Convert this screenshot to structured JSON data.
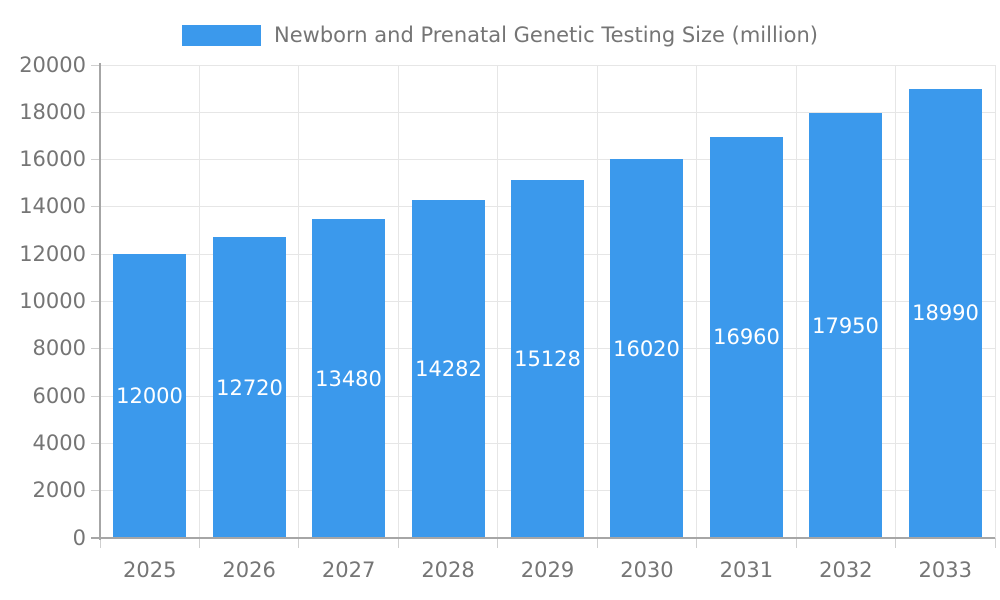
{
  "chart_data": {
    "type": "bar",
    "title": "Newborn and Prenatal Genetic Testing Size (million)",
    "categories": [
      "2025",
      "2026",
      "2027",
      "2028",
      "2029",
      "2030",
      "2031",
      "2032",
      "2033"
    ],
    "values": [
      12000,
      12720,
      13480,
      14282,
      15128,
      16020,
      16960,
      17950,
      18990
    ],
    "xlabel": "",
    "ylabel": "",
    "ylim": [
      0,
      20000
    ],
    "ytick_step": 2000,
    "grid": true,
    "legend_position": "top",
    "value_labels": "centered-in-bar",
    "colors": {
      "bar": "#3B99EC",
      "value_label": "#FFFFFF",
      "axis_text": "#757575",
      "axis_line": "#A6A6A6",
      "gridline": "#E6E6E6",
      "tick": "#CFCFCF",
      "background": "#FFFFFF"
    }
  }
}
